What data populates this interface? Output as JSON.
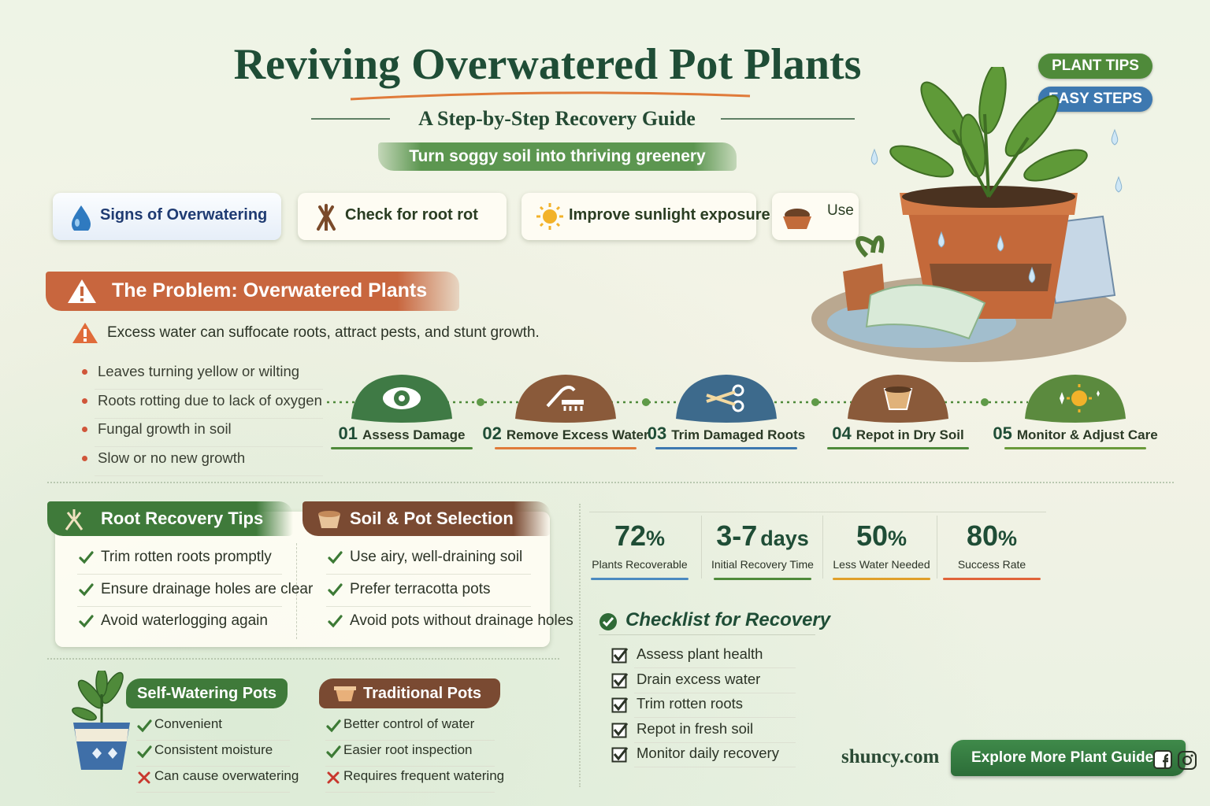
{
  "header": {
    "title": "Reviving Overwatered Pot Plants",
    "subtitle": "A Step-by-Step Recovery Guide",
    "tagline": "Turn soggy soil into thriving greenery",
    "badges": [
      "PLANT TIPS",
      "EASY STEPS"
    ]
  },
  "tabs": [
    "Signs of Overwatering",
    "Check for root rot",
    "Improve sunlight exposure",
    "Use"
  ],
  "problem": {
    "title": "The Problem: Overwatered Plants",
    "warning": "Excess water can suffocate roots, attract pests, and stunt growth.",
    "bullets": [
      "Leaves turning yellow or wilting",
      "Roots rotting due to lack of oxygen",
      "Fungal growth in soil",
      "Slow or no new growth"
    ]
  },
  "steps": [
    {
      "number": "01",
      "label": "Assess Damage"
    },
    {
      "number": "02",
      "label": "Remove Excess Water"
    },
    {
      "number": "03",
      "label": "Trim Damaged Roots"
    },
    {
      "number": "04",
      "label": "Repot in Dry Soil"
    },
    {
      "number": "05",
      "label": "Monitor & Adjust Care"
    }
  ],
  "root_tips": {
    "title": "Root Recovery Tips",
    "items": [
      "Trim rotten roots promptly",
      "Ensure drainage holes are clear",
      "Avoid waterlogging again"
    ]
  },
  "soil": {
    "title": "Soil & Pot Selection",
    "items": [
      "Use airy, well-draining soil",
      "Prefer terracotta pots",
      "Avoid pots without drainage holes"
    ]
  },
  "comparison": [
    {
      "title": "Self-Watering Pots",
      "items": [
        {
          "text": "Convenient",
          "pro": true
        },
        {
          "text": "Consistent moisture",
          "pro": true
        },
        {
          "text": "Can cause overwatering",
          "pro": false
        }
      ]
    },
    {
      "title": "Traditional Pots",
      "items": [
        {
          "text": "Better control of water",
          "pro": true
        },
        {
          "text": "Easier root inspection",
          "pro": true
        },
        {
          "text": "Requires frequent watering",
          "pro": false
        }
      ]
    }
  ],
  "stats": [
    {
      "value": "72",
      "unit": "%",
      "label": "Plants Recoverable"
    },
    {
      "value": "3-7",
      "unit": "days",
      "label": "Initial Recovery Time"
    },
    {
      "value": "50",
      "unit": "%",
      "label": "Less Water Needed"
    },
    {
      "value": "80",
      "unit": "%",
      "label": "Success Rate"
    }
  ],
  "checklist": {
    "title": "Checklist for Recovery",
    "items": [
      "Assess plant health",
      "Drain excess water",
      "Trim rotten roots",
      "Repot in fresh soil",
      "Monitor daily recovery"
    ]
  },
  "footer": {
    "site": "shuncy.com",
    "button": "Explore More Plant Guides"
  }
}
